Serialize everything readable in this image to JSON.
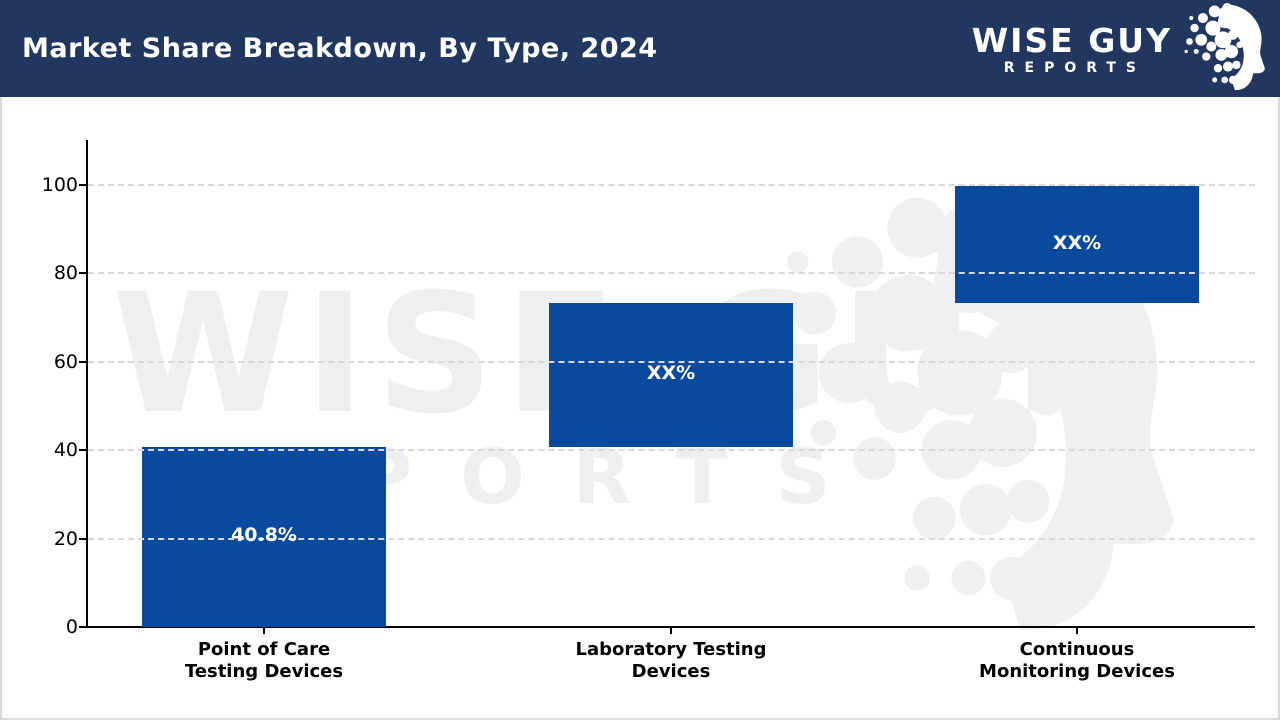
{
  "header": {
    "title": "Market Share Breakdown, By Type, 2024",
    "bg_color": "#223760",
    "logo": {
      "line1": "WISE GUY",
      "line2": "REPORTS",
      "icon": "dotted-head-profile-icon"
    }
  },
  "watermark": {
    "line1": "WISE GUY",
    "line2": "REPORTS",
    "icon": "dotted-head-profile-icon"
  },
  "chart_data": {
    "type": "bar",
    "subtype": "floating-waterfall",
    "title": "Market Share Breakdown, By Type, 2024",
    "categories": [
      "Point of Care\nTesting Devices",
      "Laboratory Testing\nDevices",
      "Continuous\nMonitoring Devices"
    ],
    "bars": [
      {
        "label": "40.8%",
        "start": 0,
        "end": 40.8
      },
      {
        "label": "XX%",
        "start": 40.8,
        "end": 73.2
      },
      {
        "label": "XX%",
        "start": 73.2,
        "end": 99.8
      }
    ],
    "yticks": [
      0,
      20,
      40,
      60,
      80,
      100
    ],
    "ylim": [
      0,
      110
    ],
    "xlabel": "",
    "ylabel": "",
    "bar_color": "#0a4a9e",
    "grid": "horizontal-dashed",
    "gridline_color": "#d8d8d8",
    "legend": "none"
  }
}
